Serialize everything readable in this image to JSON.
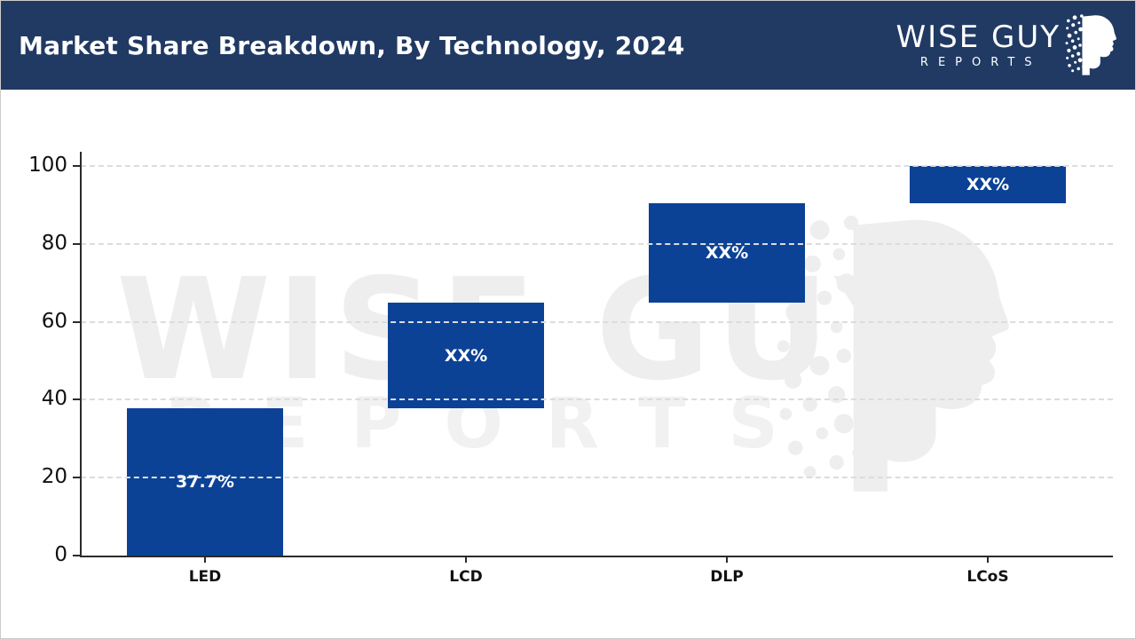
{
  "header": {
    "title": "Market Share Breakdown, By Technology, 2024",
    "brand_line1": "WISE GUY",
    "brand_line2": "REPORTS",
    "bg_color": "#213a63"
  },
  "watermark": {
    "line1": "WISE GUY",
    "line2": "REPORTS"
  },
  "chart_data": {
    "type": "bar",
    "subtype": "waterfall",
    "title": "Market Share Breakdown, By Technology, 2024",
    "categories": [
      "LED",
      "LCD",
      "DLP",
      "LCoS"
    ],
    "segments": [
      {
        "category": "LED",
        "start": 0,
        "end": 37.7,
        "label": "37.7%"
      },
      {
        "category": "LCD",
        "start": 37.7,
        "end": 65,
        "label": "XX%"
      },
      {
        "category": "DLP",
        "start": 65,
        "end": 90.5,
        "label": "XX%"
      },
      {
        "category": "LCoS",
        "start": 90.5,
        "end": 100,
        "label": "XX%"
      }
    ],
    "ylim": [
      0,
      100
    ],
    "yticks": [
      0,
      20,
      40,
      60,
      80,
      100
    ],
    "ytick_labels": [
      "0",
      "20",
      "40",
      "60",
      "80",
      "100"
    ],
    "grid": "horizontal-dashed",
    "legend": "none",
    "bar_color": "#0b4296",
    "bar_label_color": "#ffffff",
    "axis_color": "#2b2b2b"
  }
}
